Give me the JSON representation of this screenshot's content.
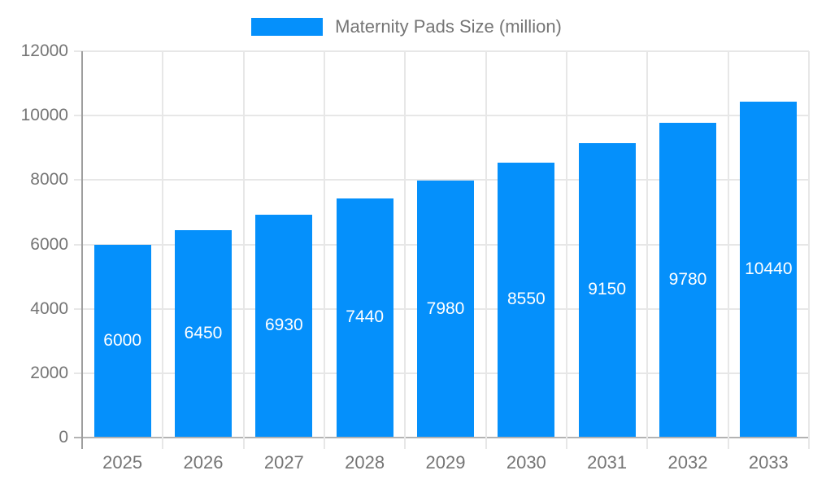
{
  "legend": {
    "label": "Maternity Pads Size (million)"
  },
  "chart_data": {
    "type": "bar",
    "title": "Maternity Pads Size (million)",
    "series_name": "Maternity Pads Size (million)",
    "categories": [
      "2025",
      "2026",
      "2027",
      "2028",
      "2029",
      "2030",
      "2031",
      "2032",
      "2033"
    ],
    "values": [
      6000,
      6450,
      6930,
      7440,
      7980,
      8550,
      9150,
      9780,
      10440
    ],
    "xlabel": "",
    "ylabel": "",
    "ylim": [
      0,
      12000
    ],
    "yticks": [
      0,
      2000,
      4000,
      6000,
      8000,
      10000,
      12000
    ],
    "grid": true,
    "legend_position": "top",
    "bar_color": "#0590FB",
    "value_label_color": "#ffffff",
    "axis_text_color": "#757575",
    "grid_color": "#e7e7e7",
    "zero_line_color": "#b3b3b3",
    "axis_line_color": "#9e9e9e"
  }
}
